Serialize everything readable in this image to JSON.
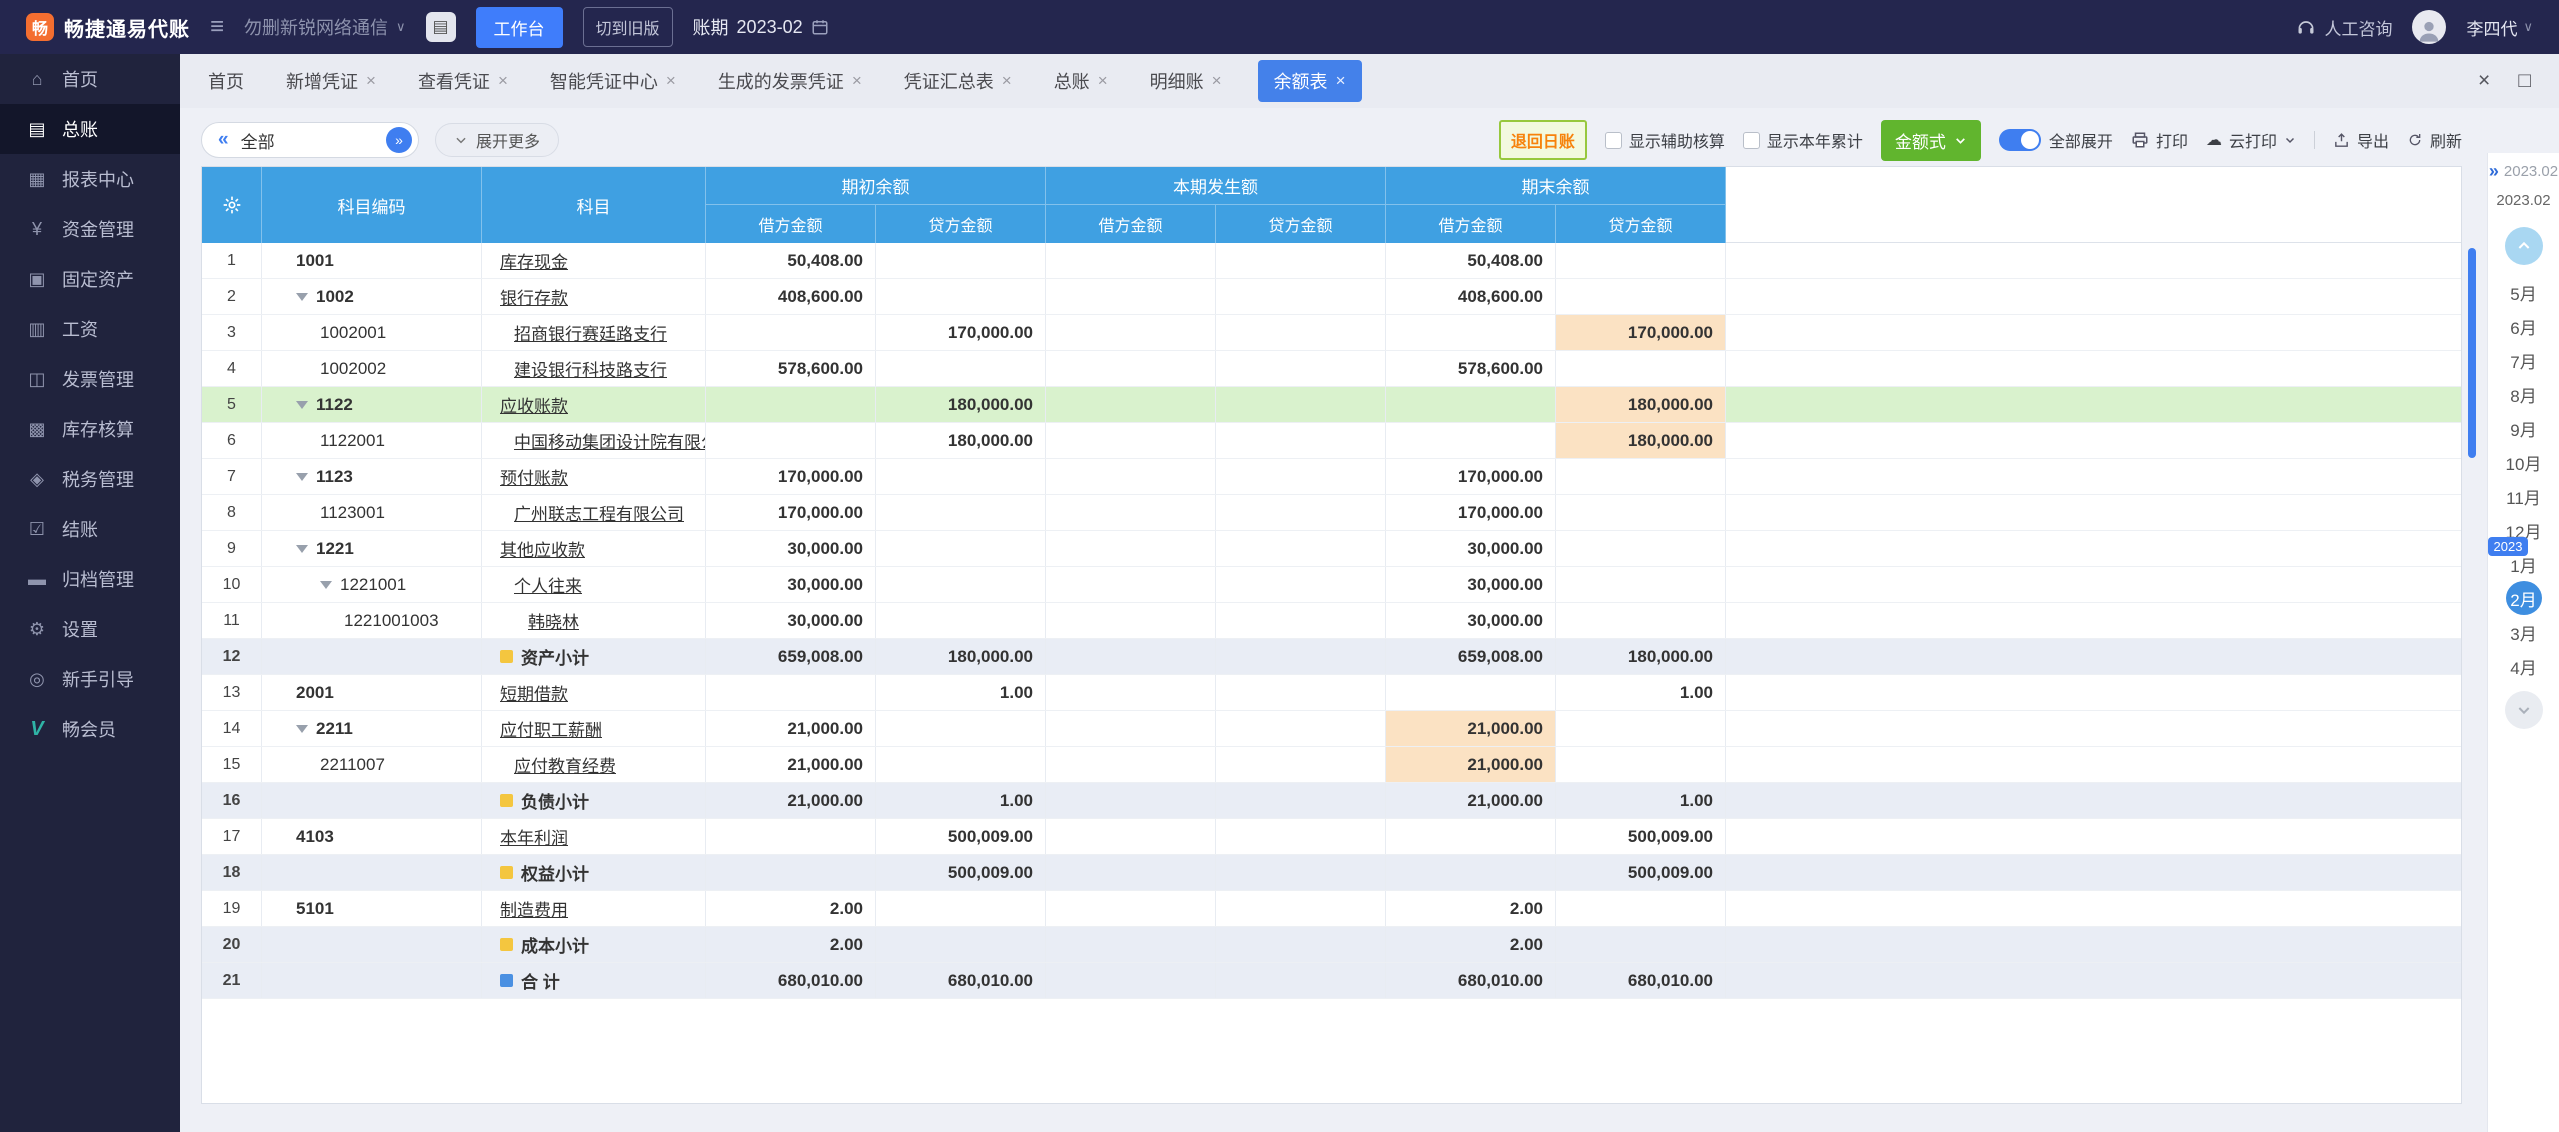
{
  "header": {
    "logo": "畅捷通易代账",
    "logo_mark": "畅",
    "company_selector": "勿删新锐网络通信",
    "workbench_button": "工作台",
    "switch_old_button": "切到旧版",
    "period_label": "账期",
    "period_value": "2023-02",
    "support_label": "人工咨询",
    "user_name": "李四代"
  },
  "icons": {
    "hamburger": "≡",
    "chevron_down": "∨",
    "back": "«",
    "forward": "»",
    "close_all": "×",
    "maximize": "□",
    "clipboard": "▤",
    "cloud": "☁",
    "panel_collapse": "»"
  },
  "tabbar": {
    "tabs": [
      {
        "label": "首页",
        "closable": false,
        "active": false
      },
      {
        "label": "新增凭证",
        "closable": true,
        "active": false
      },
      {
        "label": "查看凭证",
        "closable": true,
        "active": false
      },
      {
        "label": "智能凭证中心",
        "closable": true,
        "active": false
      },
      {
        "label": "生成的发票凭证",
        "closable": true,
        "active": false
      },
      {
        "label": "凭证汇总表",
        "closable": true,
        "active": false
      },
      {
        "label": "总账",
        "closable": true,
        "active": false
      },
      {
        "label": "明细账",
        "closable": true,
        "active": false
      },
      {
        "label": "余额表",
        "closable": true,
        "active": true
      }
    ]
  },
  "sidebar": {
    "items": [
      {
        "label": "首页",
        "icon": "home-icon",
        "glyph": "⌂",
        "active": false
      },
      {
        "label": "总账",
        "icon": "general-ledger-icon",
        "glyph": "▤",
        "active": true
      },
      {
        "label": "报表中心",
        "icon": "report-center-icon",
        "glyph": "▦",
        "active": false
      },
      {
        "label": "资金管理",
        "icon": "funds-icon",
        "glyph": "¥",
        "active": false
      },
      {
        "label": "固定资产",
        "icon": "fixed-assets-icon",
        "glyph": "▣",
        "active": false
      },
      {
        "label": "工资",
        "icon": "salary-icon",
        "glyph": "▥",
        "active": false
      },
      {
        "label": "发票管理",
        "icon": "invoice-icon",
        "glyph": "◫",
        "active": false
      },
      {
        "label": "库存核算",
        "icon": "inventory-icon",
        "glyph": "▩",
        "active": false
      },
      {
        "label": "税务管理",
        "icon": "tax-icon",
        "glyph": "◈",
        "active": false
      },
      {
        "label": "结账",
        "icon": "closing-icon",
        "glyph": "☑",
        "active": false
      },
      {
        "label": "归档管理",
        "icon": "archive-icon",
        "glyph": "▬",
        "active": false
      },
      {
        "label": "设置",
        "icon": "settings-icon",
        "glyph": "⚙",
        "active": false
      },
      {
        "label": "新手引导",
        "icon": "guide-icon",
        "glyph": "◎",
        "active": false
      },
      {
        "label": "畅会员",
        "icon": "member-icon",
        "glyph": "V",
        "active": false,
        "member": true
      }
    ]
  },
  "toolbar": {
    "filter_value": "全部",
    "expand_more": "展开更多",
    "return_daily": "退回日账",
    "checkbox_auxiliary": "显示辅助核算",
    "checkbox_ytd": "显示本年累计",
    "amount_style": "金额式",
    "expand_all": "全部展开",
    "print": "打印",
    "cloud_print": "云打印",
    "export": "导出",
    "refresh": "刷新"
  },
  "table": {
    "headers": {
      "code": "科目编码",
      "subject": "科目",
      "groups": [
        "期初余额",
        "本期发生额",
        "期末余额"
      ],
      "debit": "借方金额",
      "credit": "贷方金额"
    },
    "rows": [
      {
        "n": "1",
        "code": "1001",
        "lvl": 0,
        "exp": false,
        "name": "库存现金",
        "type": "normal",
        "a": [
          "50,408.00",
          "",
          "",
          "",
          "50,408.00",
          ""
        ],
        "orange": []
      },
      {
        "n": "2",
        "code": "1002",
        "lvl": 0,
        "exp": true,
        "name": "银行存款",
        "type": "normal",
        "a": [
          "408,600.00",
          "",
          "",
          "",
          "408,600.00",
          ""
        ],
        "orange": []
      },
      {
        "n": "3",
        "code": "1002001",
        "lvl": 1,
        "exp": false,
        "name": "招商银行赛廷路支行",
        "type": "normal",
        "a": [
          "",
          "170,000.00",
          "",
          "",
          "",
          "170,000.00"
        ],
        "orange": [
          5
        ]
      },
      {
        "n": "4",
        "code": "1002002",
        "lvl": 1,
        "exp": false,
        "name": "建设银行科技路支行",
        "type": "normal",
        "a": [
          "578,600.00",
          "",
          "",
          "",
          "578,600.00",
          ""
        ],
        "orange": []
      },
      {
        "n": "5",
        "code": "1122",
        "lvl": 0,
        "exp": true,
        "name": "应收账款",
        "type": "green",
        "a": [
          "",
          "180,000.00",
          "",
          "",
          "",
          "180,000.00"
        ],
        "orange": [
          5
        ]
      },
      {
        "n": "6",
        "code": "1122001",
        "lvl": 1,
        "exp": false,
        "name": "中国移动集团设计院有限公司划",
        "type": "normal",
        "a": [
          "",
          "180,000.00",
          "",
          "",
          "",
          "180,000.00"
        ],
        "orange": [
          5
        ]
      },
      {
        "n": "7",
        "code": "1123",
        "lvl": 0,
        "exp": true,
        "name": "预付账款",
        "type": "normal",
        "a": [
          "170,000.00",
          "",
          "",
          "",
          "170,000.00",
          ""
        ],
        "orange": []
      },
      {
        "n": "8",
        "code": "1123001",
        "lvl": 1,
        "exp": false,
        "name": "广州联志工程有限公司",
        "type": "normal",
        "a": [
          "170,000.00",
          "",
          "",
          "",
          "170,000.00",
          ""
        ],
        "orange": []
      },
      {
        "n": "9",
        "code": "1221",
        "lvl": 0,
        "exp": true,
        "name": "其他应收款",
        "type": "normal",
        "a": [
          "30,000.00",
          "",
          "",
          "",
          "30,000.00",
          ""
        ],
        "orange": []
      },
      {
        "n": "10",
        "code": "1221001",
        "lvl": 1,
        "exp": true,
        "name": "个人往来",
        "type": "normal",
        "a": [
          "30,000.00",
          "",
          "",
          "",
          "30,000.00",
          ""
        ],
        "orange": []
      },
      {
        "n": "11",
        "code": "1221001003",
        "lvl": 2,
        "exp": false,
        "name": "韩晓林",
        "type": "normal",
        "a": [
          "30,000.00",
          "",
          "",
          "",
          "30,000.00",
          ""
        ],
        "orange": []
      },
      {
        "n": "12",
        "code": "",
        "lvl": 0,
        "exp": false,
        "name": "资产小计",
        "type": "subtotal",
        "icon": "yellow",
        "a": [
          "659,008.00",
          "180,000.00",
          "",
          "",
          "659,008.00",
          "180,000.00"
        ],
        "orange": []
      },
      {
        "n": "13",
        "code": "2001",
        "lvl": 0,
        "exp": false,
        "name": "短期借款",
        "type": "normal",
        "a": [
          "",
          "1.00",
          "",
          "",
          "",
          "1.00"
        ],
        "orange": []
      },
      {
        "n": "14",
        "code": "2211",
        "lvl": 0,
        "exp": true,
        "name": "应付职工薪酬",
        "type": "normal",
        "a": [
          "21,000.00",
          "",
          "",
          "",
          "21,000.00",
          ""
        ],
        "orange": [
          4
        ]
      },
      {
        "n": "15",
        "code": "2211007",
        "lvl": 1,
        "exp": false,
        "name": "应付教育经费",
        "type": "normal",
        "a": [
          "21,000.00",
          "",
          "",
          "",
          "21,000.00",
          ""
        ],
        "orange": [
          4
        ]
      },
      {
        "n": "16",
        "code": "",
        "lvl": 0,
        "exp": false,
        "name": "负债小计",
        "type": "subtotal",
        "icon": "yellow",
        "a": [
          "21,000.00",
          "1.00",
          "",
          "",
          "21,000.00",
          "1.00"
        ],
        "orange": []
      },
      {
        "n": "17",
        "code": "4103",
        "lvl": 0,
        "exp": false,
        "name": "本年利润",
        "type": "normal",
        "a": [
          "",
          "500,009.00",
          "",
          "",
          "",
          "500,009.00"
        ],
        "orange": []
      },
      {
        "n": "18",
        "code": "",
        "lvl": 0,
        "exp": false,
        "name": "权益小计",
        "type": "subtotal",
        "icon": "yellow",
        "a": [
          "",
          "500,009.00",
          "",
          "",
          "",
          "500,009.00"
        ],
        "orange": []
      },
      {
        "n": "19",
        "code": "5101",
        "lvl": 0,
        "exp": false,
        "name": "制造费用",
        "type": "normal",
        "a": [
          "2.00",
          "",
          "",
          "",
          "2.00",
          ""
        ],
        "orange": []
      },
      {
        "n": "20",
        "code": "",
        "lvl": 0,
        "exp": false,
        "name": "成本小计",
        "type": "subtotal",
        "icon": "yellow",
        "a": [
          "2.00",
          "",
          "",
          "",
          "2.00",
          ""
        ],
        "orange": []
      },
      {
        "n": "21",
        "code": "",
        "lvl": 0,
        "exp": false,
        "name": "合 计",
        "type": "total",
        "icon": "blue",
        "a": [
          "680,010.00",
          "680,010.00",
          "",
          "",
          "680,010.00",
          "680,010.00"
        ],
        "orange": []
      }
    ]
  },
  "month_panel": {
    "period_top": "2023.02",
    "period_current": "2023.02",
    "year_badge": "2023",
    "months": [
      "5月",
      "6月",
      "7月",
      "8月",
      "9月",
      "10月",
      "11月",
      "12月",
      "1月",
      "2月",
      "3月",
      "4月"
    ],
    "selected_month": "2月"
  }
}
